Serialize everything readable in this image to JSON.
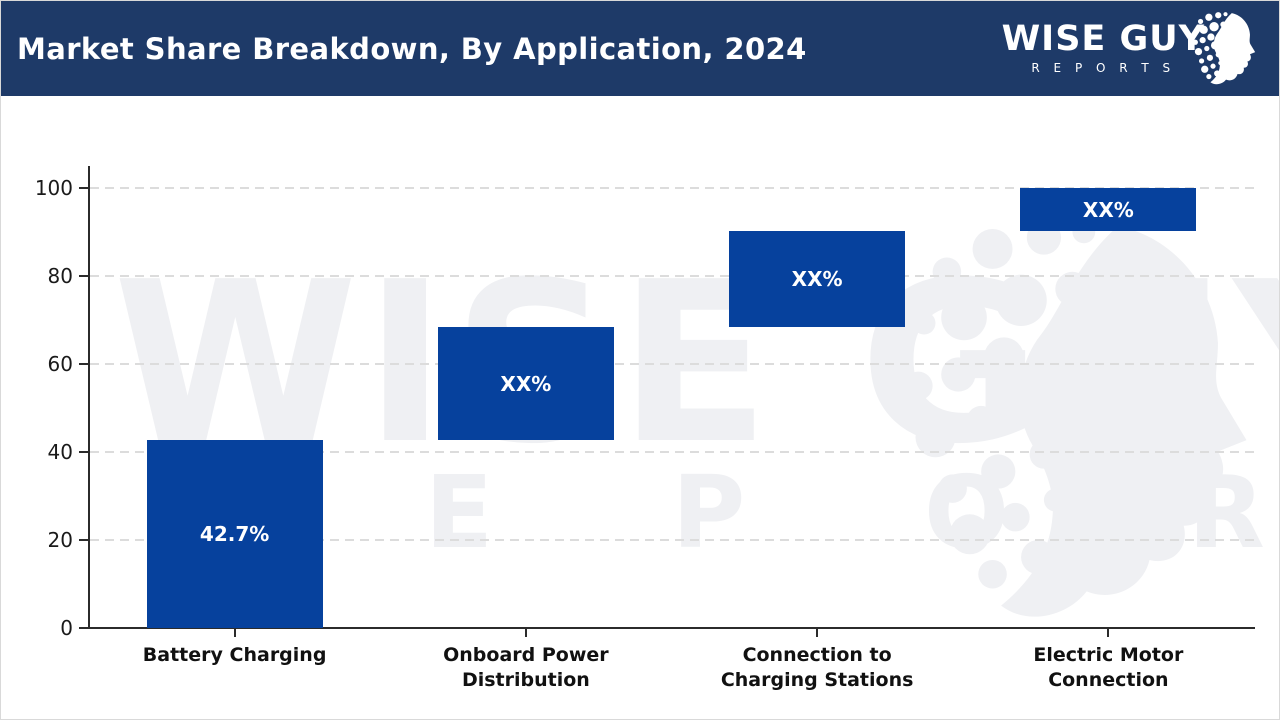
{
  "header": {
    "title": "Market Share Breakdown, By Application, 2024",
    "logo": {
      "line1": "WISE GUY",
      "line2": "R E P O R T S"
    }
  },
  "watermark": {
    "line1": "WISE GUY",
    "line2": "R E P O R T S"
  },
  "chart_data": {
    "type": "bar",
    "subtype": "waterfall",
    "title": "Market Share Breakdown, By Application, 2024",
    "categories": [
      "Battery Charging",
      "Onboard Power\nDistribution",
      "Connection to\nCharging Stations",
      "Electric Motor\nConnection"
    ],
    "segments": [
      {
        "category": "Battery Charging",
        "start": 0,
        "end": 42.7,
        "label": "42.7%"
      },
      {
        "category": "Onboard Power Distribution",
        "start": 42.7,
        "end": 68.4,
        "label": "XX%"
      },
      {
        "category": "Connection to Charging Stations",
        "start": 68.4,
        "end": 90.2,
        "label": "XX%"
      },
      {
        "category": "Electric Motor Connection",
        "start": 90.2,
        "end": 100,
        "label": "XX%"
      }
    ],
    "xlabel": "",
    "ylabel": "",
    "yticks": [
      0,
      20,
      40,
      60,
      80,
      100
    ],
    "ylim": [
      0,
      105
    ],
    "grid": "horizontal-dashed",
    "legend": "none",
    "bar_color": "#06419d",
    "bar_label_color": "#ffffff",
    "axis_color": "#2b2b2b",
    "gridline_color": "#dcdcdc"
  },
  "colors": {
    "header_bg": "#1e3a68",
    "page_bg": "#ffffff",
    "watermark": "#eff0f3",
    "title_text": "#ffffff"
  }
}
